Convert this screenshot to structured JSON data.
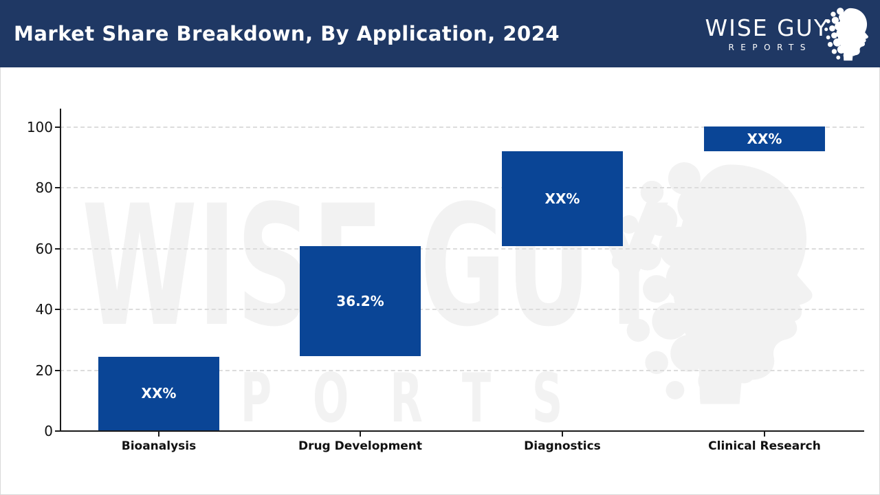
{
  "header": {
    "title": "Market Share Breakdown, By Application, 2024",
    "bg_color": "#1f3864",
    "logo": {
      "line1": "WISE GUY",
      "line2": "REPORTS"
    }
  },
  "watermark": {
    "line1": "WISE GUY",
    "line2": "REPORTS"
  },
  "chart_data": {
    "type": "bar",
    "subtype": "waterfall-floating-bars",
    "title": "Market Share Breakdown, By Application, 2024",
    "categories": [
      "Bioanalysis",
      "Drug Development",
      "Diagnostics",
      "Clinical Research"
    ],
    "segments": [
      {
        "category": "Bioanalysis",
        "start": 0,
        "end": 24.3,
        "value": 24.3,
        "label": "XX%"
      },
      {
        "category": "Drug Development",
        "start": 24.4,
        "end": 60.6,
        "value": 36.2,
        "label": "36.2%"
      },
      {
        "category": "Diagnostics",
        "start": 60.6,
        "end": 91.8,
        "value": 31.2,
        "label": "XX%"
      },
      {
        "category": "Clinical Research",
        "start": 91.8,
        "end": 100.0,
        "value": 8.2,
        "label": "XX%"
      }
    ],
    "xlabel": "",
    "ylabel": "",
    "ylim": [
      0,
      100
    ],
    "yticks": [
      0,
      20,
      40,
      60,
      80,
      100
    ],
    "grid": "horizontal-dashed",
    "legend": "none",
    "bar_color": "#0a4596",
    "bar_label_color": "#ffffff"
  }
}
